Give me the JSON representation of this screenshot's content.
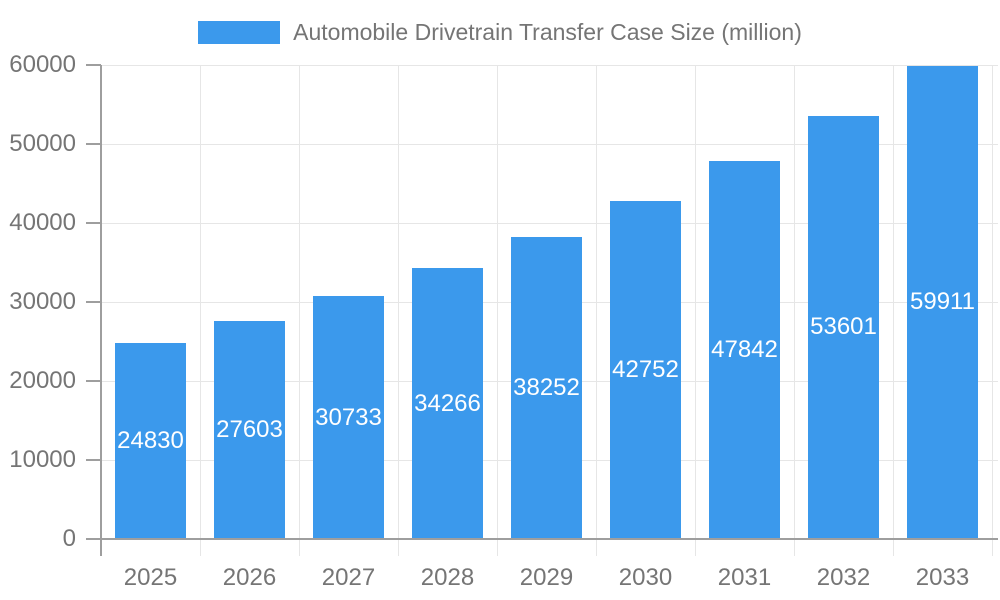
{
  "chart_data": {
    "type": "bar",
    "title": "Automobile Drivetrain Transfer Case Size (million)",
    "categories": [
      "2025",
      "2026",
      "2027",
      "2028",
      "2029",
      "2030",
      "2031",
      "2032",
      "2033"
    ],
    "values": [
      24830,
      27603,
      30733,
      34266,
      38252,
      42752,
      47842,
      53601,
      59911
    ],
    "series": [
      {
        "name": "Automobile Drivetrain Transfer Case Size (million)",
        "values": [
          24830,
          27603,
          30733,
          34266,
          38252,
          42752,
          47842,
          53601,
          59911
        ]
      }
    ],
    "xlabel": "",
    "ylabel": "",
    "ylim": [
      0,
      60000
    ],
    "yticks": [
      0,
      10000,
      20000,
      30000,
      40000,
      50000,
      60000
    ],
    "grid": true,
    "legend_position": "top-center",
    "value_labels": "inside-bar-centered",
    "colors": {
      "bar": "#3b99ec",
      "value_label": "#ffffff",
      "axis_text": "#757575",
      "axis_line": "#9e9e9e",
      "gridline": "#e6e6e6",
      "background": "#ffffff"
    }
  }
}
